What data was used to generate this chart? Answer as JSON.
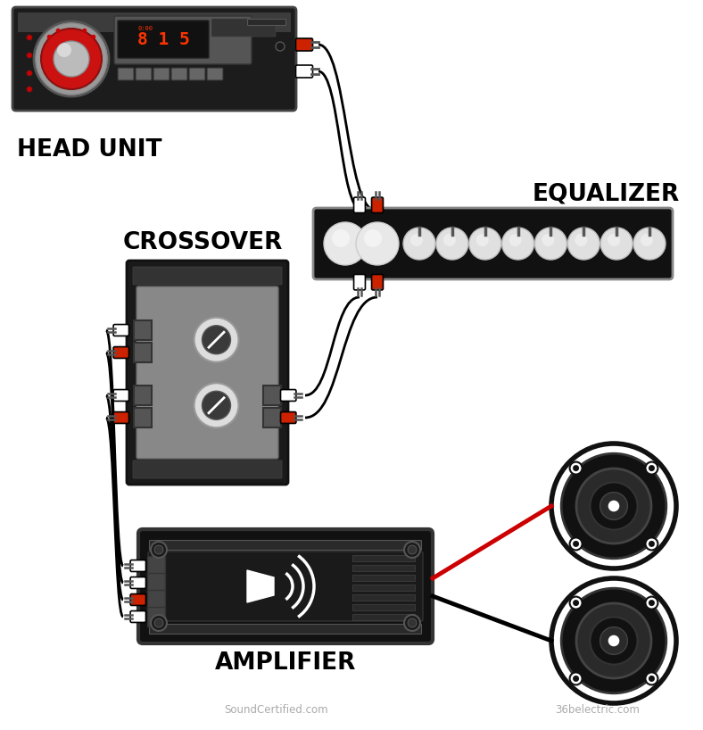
{
  "bg_color": "#ffffff",
  "labels": {
    "head_unit": "HEAD UNIT",
    "equalizer": "EQUALIZER",
    "crossover": "CROSSOVER",
    "amplifier": "AMPLIFIER"
  },
  "label_fontsize": 19,
  "watermarks": [
    "SoundCertified.com",
    "36belectric.com"
  ],
  "connector_white": "#ffffff",
  "connector_red": "#cc2200",
  "wire_color": "#000000",
  "wire_red": "#cc0000",
  "eq_bg": "#111111",
  "eq_border": "#888888",
  "cv_outer": "#1a1a1a",
  "cv_inner": "#888888",
  "amp_outer": "#111111"
}
